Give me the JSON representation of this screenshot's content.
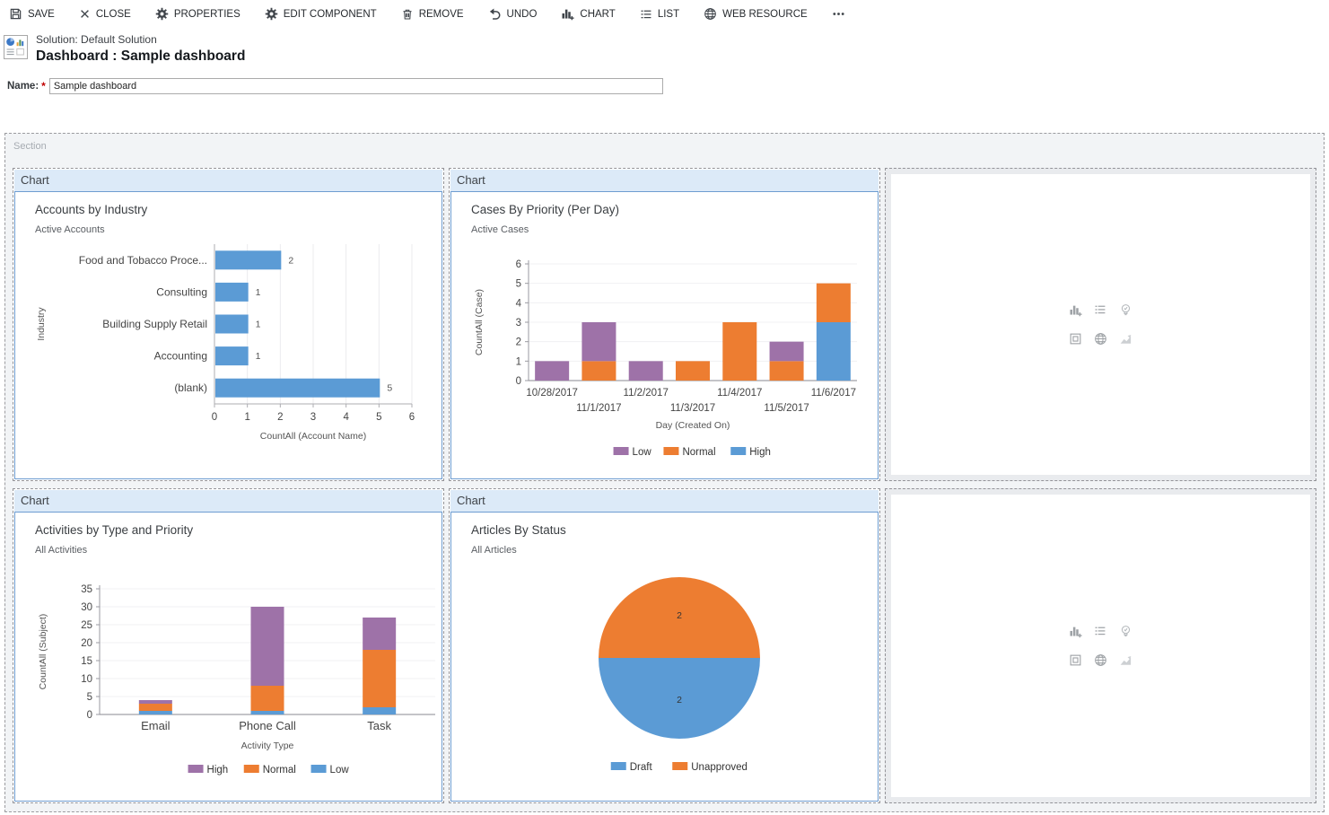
{
  "toolbar": {
    "items": [
      {
        "label": "SAVE",
        "icon": "save-icon"
      },
      {
        "label": "CLOSE",
        "icon": "close-icon"
      },
      {
        "label": "PROPERTIES",
        "icon": "gear-icon"
      },
      {
        "label": "EDIT COMPONENT",
        "icon": "gear-icon"
      },
      {
        "label": "REMOVE",
        "icon": "trash-icon"
      },
      {
        "label": "UNDO",
        "icon": "undo-icon"
      },
      {
        "label": "CHART",
        "icon": "chart-icon"
      },
      {
        "label": "LIST",
        "icon": "list-icon"
      },
      {
        "label": "WEB RESOURCE",
        "icon": "globe-icon"
      },
      {
        "label": "",
        "icon": "ellipsis-icon"
      }
    ]
  },
  "header": {
    "solution": "Solution: Default Solution",
    "title": "Dashboard : Sample dashboard"
  },
  "name_field": {
    "label": "Name:",
    "required_marker": "*",
    "value": "Sample dashboard"
  },
  "section": {
    "label": "Section",
    "component_header": "Chart"
  },
  "colors": {
    "blue": "#5B9BD5",
    "orange": "#ED7D31",
    "purple": "#9E72A8",
    "component_border": "#6E9DD1",
    "chart_header_bg": "#DCEAF8"
  },
  "empty_panel_icons": [
    "chart-icon",
    "list-icon",
    "lightbulb-icon",
    "iframe-icon",
    "globe-icon",
    "trend-icon"
  ],
  "chart_data": [
    {
      "id": "accounts",
      "type": "bar-horizontal",
      "title": "Accounts by Industry",
      "subtitle": "Active Accounts",
      "categories": [
        "Food and Tobacco Proce...",
        "Consulting",
        "Building Supply Retail",
        "Accounting",
        "(blank)"
      ],
      "values": [
        2,
        1,
        1,
        1,
        5
      ],
      "bar_color": "#5B9BD5",
      "xlabel": "CountAll (Account Name)",
      "ylabel": "Industry",
      "xlim": [
        0,
        6
      ],
      "xticks": [
        0,
        1,
        2,
        3,
        4,
        5,
        6
      ],
      "grid": true,
      "value_labels": true
    },
    {
      "id": "cases",
      "type": "column-stacked",
      "title": "Cases By Priority (Per Day)",
      "subtitle": "Active Cases",
      "categories": [
        "10/28/2017",
        "11/1/2017",
        "11/2/2017",
        "11/3/2017",
        "11/4/2017",
        "11/5/2017",
        "11/6/2017"
      ],
      "series": [
        {
          "name": "High",
          "color": "#5B9BD5",
          "values": [
            0,
            0,
            0,
            0,
            0,
            0,
            3
          ]
        },
        {
          "name": "Normal",
          "color": "#ED7D31",
          "values": [
            0,
            1,
            0,
            1,
            3,
            1,
            2
          ]
        },
        {
          "name": "Low",
          "color": "#9E72A8",
          "values": [
            1,
            2,
            1,
            0,
            0,
            1,
            0
          ]
        }
      ],
      "legend": [
        {
          "label": "Low",
          "color": "#9E72A8"
        },
        {
          "label": "Normal",
          "color": "#ED7D31"
        },
        {
          "label": "High",
          "color": "#5B9BD5"
        }
      ],
      "xlabel": "Day (Created On)",
      "ylabel": "CountAll (Case)",
      "ylim": [
        0,
        6
      ],
      "yticks": [
        0,
        1,
        2,
        3,
        4,
        5,
        6
      ],
      "stagger_x_labels": true,
      "grid": true,
      "legend_position": "bottom"
    },
    {
      "id": "activities",
      "type": "column-stacked",
      "title": "Activities by Type and Priority",
      "subtitle": "All Activities",
      "categories": [
        "Email",
        "Phone Call",
        "Task"
      ],
      "series": [
        {
          "name": "Low",
          "color": "#5B9BD5",
          "values": [
            1,
            1,
            2
          ]
        },
        {
          "name": "Normal",
          "color": "#ED7D31",
          "values": [
            2,
            7,
            16
          ]
        },
        {
          "name": "High",
          "color": "#9E72A8",
          "values": [
            1,
            22,
            9
          ]
        }
      ],
      "legend": [
        {
          "label": "High",
          "color": "#9E72A8"
        },
        {
          "label": "Normal",
          "color": "#ED7D31"
        },
        {
          "label": "Low",
          "color": "#5B9BD5"
        }
      ],
      "xlabel": "Activity Type",
      "ylabel": "CountAll (Subject)",
      "ylim": [
        0,
        35
      ],
      "yticks": [
        0,
        5,
        10,
        15,
        20,
        25,
        30,
        35
      ],
      "stagger_x_labels": false,
      "grid": true,
      "legend_position": "bottom"
    },
    {
      "id": "articles",
      "type": "pie",
      "title": "Articles By Status",
      "subtitle": "All Articles",
      "slices": [
        {
          "name": "Unapproved",
          "value": 2,
          "color": "#ED7D31",
          "label": "2"
        },
        {
          "name": "Draft",
          "value": 2,
          "color": "#5B9BD5",
          "label": "2"
        }
      ],
      "legend": [
        {
          "label": "Draft",
          "color": "#5B9BD5"
        },
        {
          "label": "Unapproved",
          "color": "#ED7D31"
        }
      ],
      "legend_position": "bottom"
    }
  ]
}
